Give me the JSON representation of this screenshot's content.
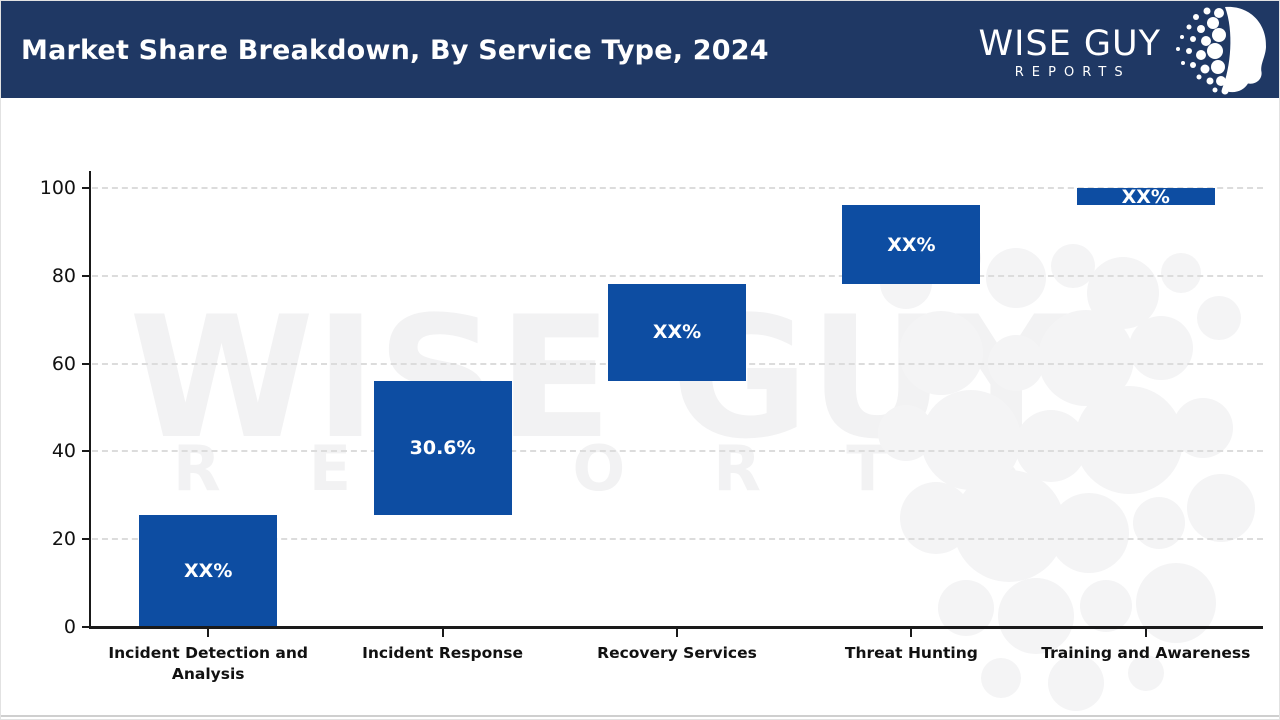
{
  "header": {
    "logo": {
      "line1": "WISE GUY",
      "line2": "REPORTS"
    }
  },
  "watermark": {
    "line1": "WISE GUY",
    "line2": "REPORTS"
  },
  "chart_data": {
    "type": "bar",
    "subtype": "waterfall",
    "title": "Market Share Breakdown, By Service Type, 2024",
    "categories": [
      "Incident Detection and Analysis",
      "Incident Response",
      "Recovery Services",
      "Threat Hunting",
      "Training and Awareness"
    ],
    "segments": [
      {
        "start": 0,
        "end": 25.5,
        "size": 25.5,
        "label": "XX%"
      },
      {
        "start": 25.5,
        "end": 56.1,
        "size": 30.6,
        "label": "30.6%"
      },
      {
        "start": 56.1,
        "end": 78.1,
        "size": 22.0,
        "label": "XX%"
      },
      {
        "start": 78.1,
        "end": 96.1,
        "size": 18.0,
        "label": "XX%"
      },
      {
        "start": 96.1,
        "end": 100,
        "size": 3.9,
        "label": "XX%"
      }
    ],
    "yticks": [
      0,
      20,
      40,
      60,
      80,
      100
    ],
    "ylim": [
      0,
      100
    ],
    "xlabel": "",
    "ylabel": "",
    "legend": "none",
    "grid": "horizontal-dashed",
    "colors": {
      "bar": "#0d4da2",
      "header_background": "#1f3864",
      "grid_line": "#dcdcdc",
      "axis": "#1a1a1a",
      "watermark": "#f2f2f3",
      "bar_label_text": "#ffffff"
    }
  }
}
